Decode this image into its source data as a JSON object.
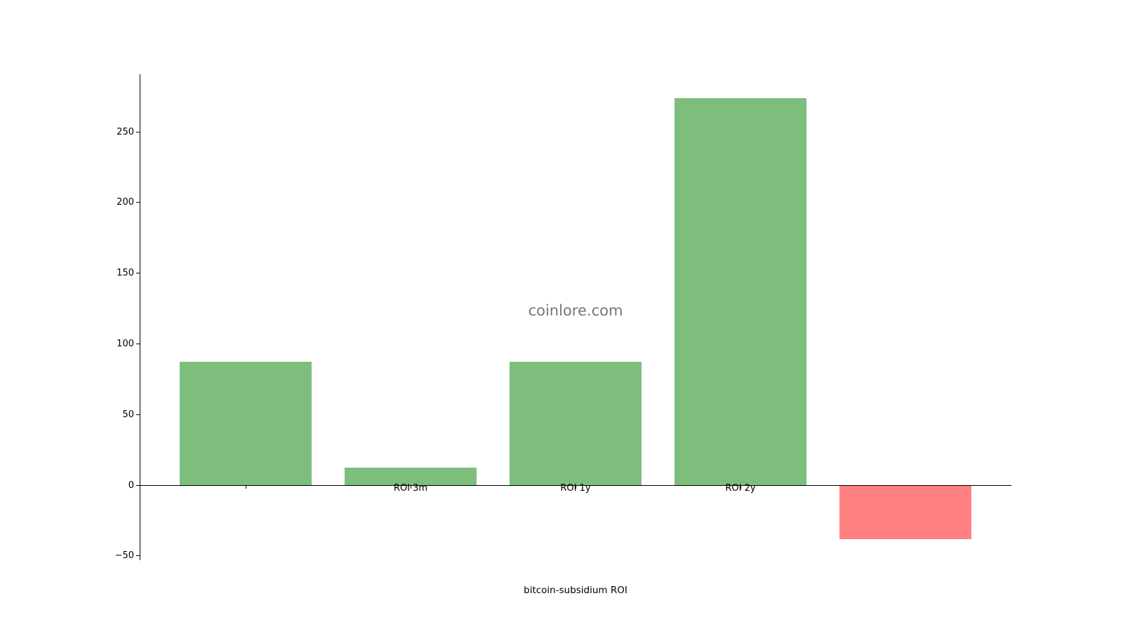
{
  "chart_data": {
    "type": "bar",
    "title": "",
    "xlabel": "bitcoin-subsidium ROI",
    "ylabel": "",
    "watermark": "coinlore.com",
    "categories": [
      "",
      "ROI 3m",
      "ROI 1y",
      "ROI 2y",
      ""
    ],
    "values": [
      87.7,
      12.6,
      87.7,
      274.0,
      -37.9
    ],
    "y_ticks": [
      -50,
      0,
      50,
      100,
      150,
      200,
      250
    ],
    "ylim": [
      -53.5,
      290.2
    ],
    "grid": false,
    "legend": null,
    "colors": {
      "positive_bar": "#7dbe7d",
      "negative_bar": "#ff8080",
      "axis": "#000000",
      "watermark_text": "#777777",
      "background": "#ffffff"
    }
  }
}
